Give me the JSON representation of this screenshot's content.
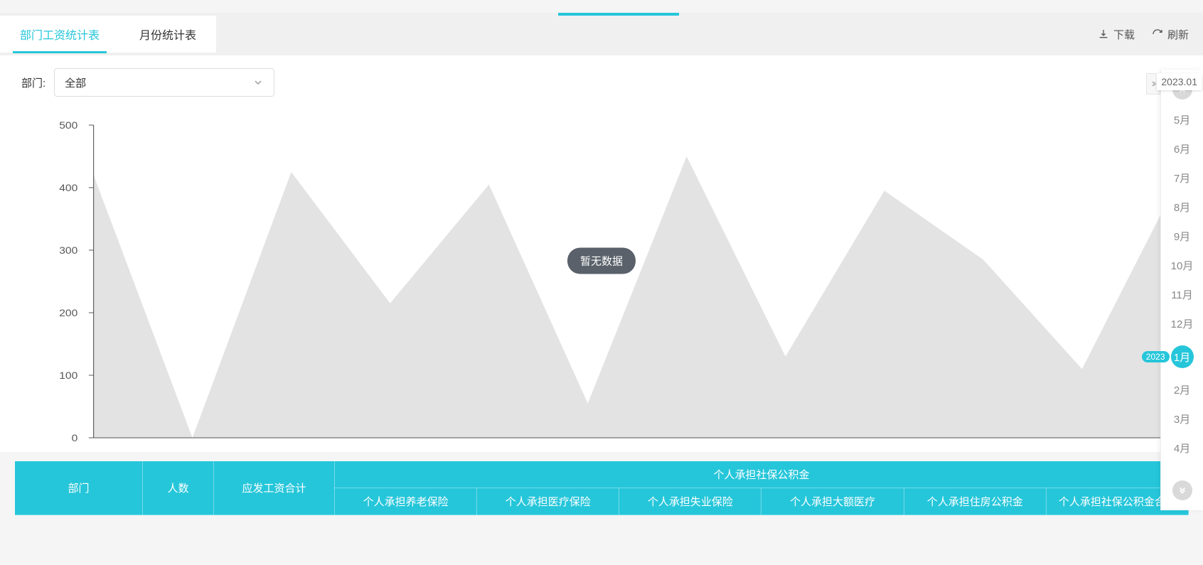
{
  "accent_color": "#26c6da",
  "tabs": {
    "dept": "部门工资统计表",
    "month": "月份统计表",
    "active": "dept"
  },
  "actions": {
    "download": "下载",
    "refresh": "刷新"
  },
  "filter": {
    "label": "部门:",
    "value": "全部"
  },
  "chart": {
    "type": "area",
    "no_data_label": "暂无数据",
    "ylim": [
      0,
      500
    ],
    "ytick_step": 100,
    "ytick_labels": [
      "0",
      "100",
      "200",
      "300",
      "400",
      "500"
    ],
    "axis_color": "#555555",
    "tick_label_color": "#555555",
    "tick_fontsize": 14,
    "area_fill": "#e3e3e3",
    "background_color": "#ffffff",
    "values": [
      420,
      0,
      425,
      215,
      405,
      55,
      450,
      130,
      395,
      285,
      110,
      420
    ],
    "x_count": 12
  },
  "table": {
    "group_header": "个人承担社保公积金",
    "columns_main": [
      "部门",
      "人数",
      "应发工资合计"
    ],
    "columns_sub": [
      "个人承担养老保险",
      "个人承担医疗保险",
      "个人承担失业保险",
      "个人承担大额医疗",
      "个人承担住房公积金",
      "个人承担社保公积金合计"
    ]
  },
  "timeline": {
    "current_label": "2023.01",
    "year_badge": "2023",
    "months": [
      "5月",
      "6月",
      "7月",
      "8月",
      "9月",
      "10月",
      "11月",
      "12月",
      "1月",
      "2月",
      "3月",
      "4月"
    ],
    "active_index": 8
  }
}
